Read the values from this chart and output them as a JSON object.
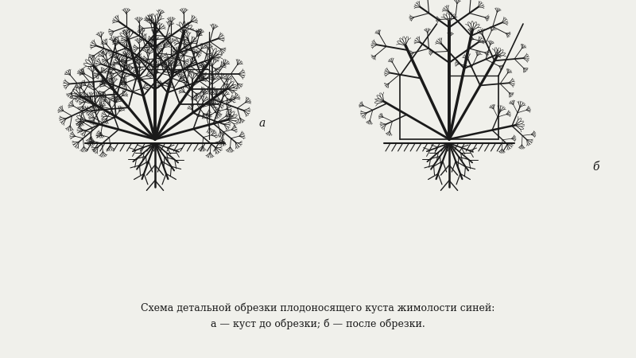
{
  "title_line1": "Схема детальной обрезки плодоносящего куста жимолости синей:",
  "title_line2": "а — куст до обрезки; б — после обрезки.",
  "label_a": "а",
  "label_b": "б",
  "bg_color": "#f0f0eb",
  "line_color": "#1a1a1a",
  "font_size_caption": 9,
  "font_size_label": 10
}
